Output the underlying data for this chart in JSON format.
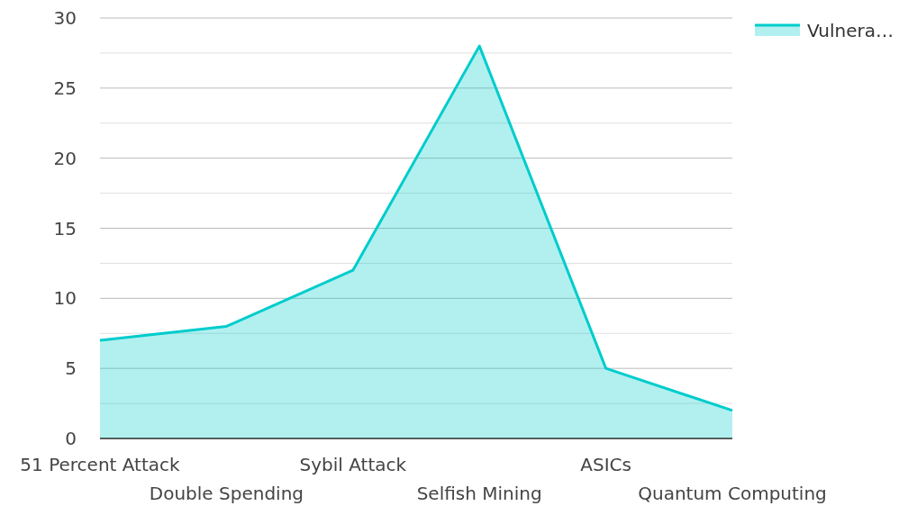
{
  "chart_data": {
    "type": "area",
    "categories": [
      "51 Percent Attack",
      "Double Spending",
      "Sybil Attack",
      "Selfish Mining",
      "ASICs",
      "Quantum Computing"
    ],
    "series": [
      {
        "name": "Vulnera…",
        "color": "#00cccc",
        "values": [
          7,
          8,
          12,
          28,
          5,
          2
        ]
      }
    ],
    "ylim": [
      0,
      30
    ],
    "yticks": [
      0,
      {
        "value": 2.5,
        "label": null
      },
      5,
      {
        "value": 7.5,
        "label": null
      },
      10,
      {
        "value": 12.5,
        "label": null
      },
      15,
      {
        "value": 17.5,
        "label": null
      },
      20,
      {
        "value": 22.5,
        "label": null
      },
      25,
      {
        "value": 27.5,
        "label": null
      },
      30
    ],
    "grid": "y",
    "legend": "top right"
  }
}
